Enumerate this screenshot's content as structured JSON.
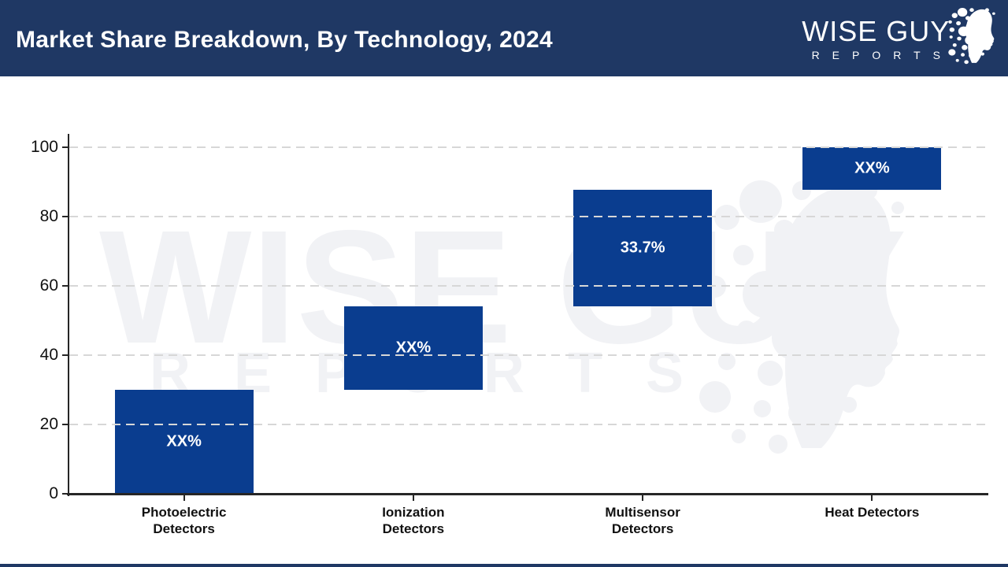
{
  "header": {
    "title": "Market Share Breakdown, By Technology, 2024",
    "logo": {
      "name": "WISE GUY",
      "tagline": "REPORTS"
    }
  },
  "watermark": {
    "line1": "WISE GUY",
    "line2": "REPORTS"
  },
  "colors": {
    "header_bg": "#1f3864",
    "bar": "#0a3d8f",
    "bar_label": "#ffffff",
    "grid": "#d7d7d7",
    "axis": "#262626",
    "tick_text": "#111111",
    "watermark": "#f1f2f5",
    "background": "#ffffff"
  },
  "chart_data": {
    "type": "bar",
    "variant": "waterfall",
    "title": "Market Share Breakdown, By Technology, 2024",
    "xlabel": "",
    "ylabel": "",
    "ylim": [
      0,
      100
    ],
    "yticks": [
      0,
      20,
      40,
      60,
      80,
      100
    ],
    "grid": "horizontal-dashed",
    "legend": "none",
    "categories": [
      {
        "line1": "Photoelectric",
        "line2": "Detectors"
      },
      {
        "line1": "Ionization",
        "line2": "Detectors"
      },
      {
        "line1": "Multisensor",
        "line2": "Detectors"
      },
      {
        "line1": "Heat Detectors",
        "line2": ""
      }
    ],
    "bars": [
      {
        "category": "Photoelectric Detectors",
        "start": 0,
        "end": 30,
        "value_label": "XX%"
      },
      {
        "category": "Ionization Detectors",
        "start": 30,
        "end": 54.1,
        "value_label": "XX%"
      },
      {
        "category": "Multisensor Detectors",
        "start": 54.1,
        "end": 87.8,
        "value_label": "33.7%"
      },
      {
        "category": "Heat Detectors",
        "start": 87.8,
        "end": 100,
        "value_label": "XX%"
      }
    ]
  }
}
